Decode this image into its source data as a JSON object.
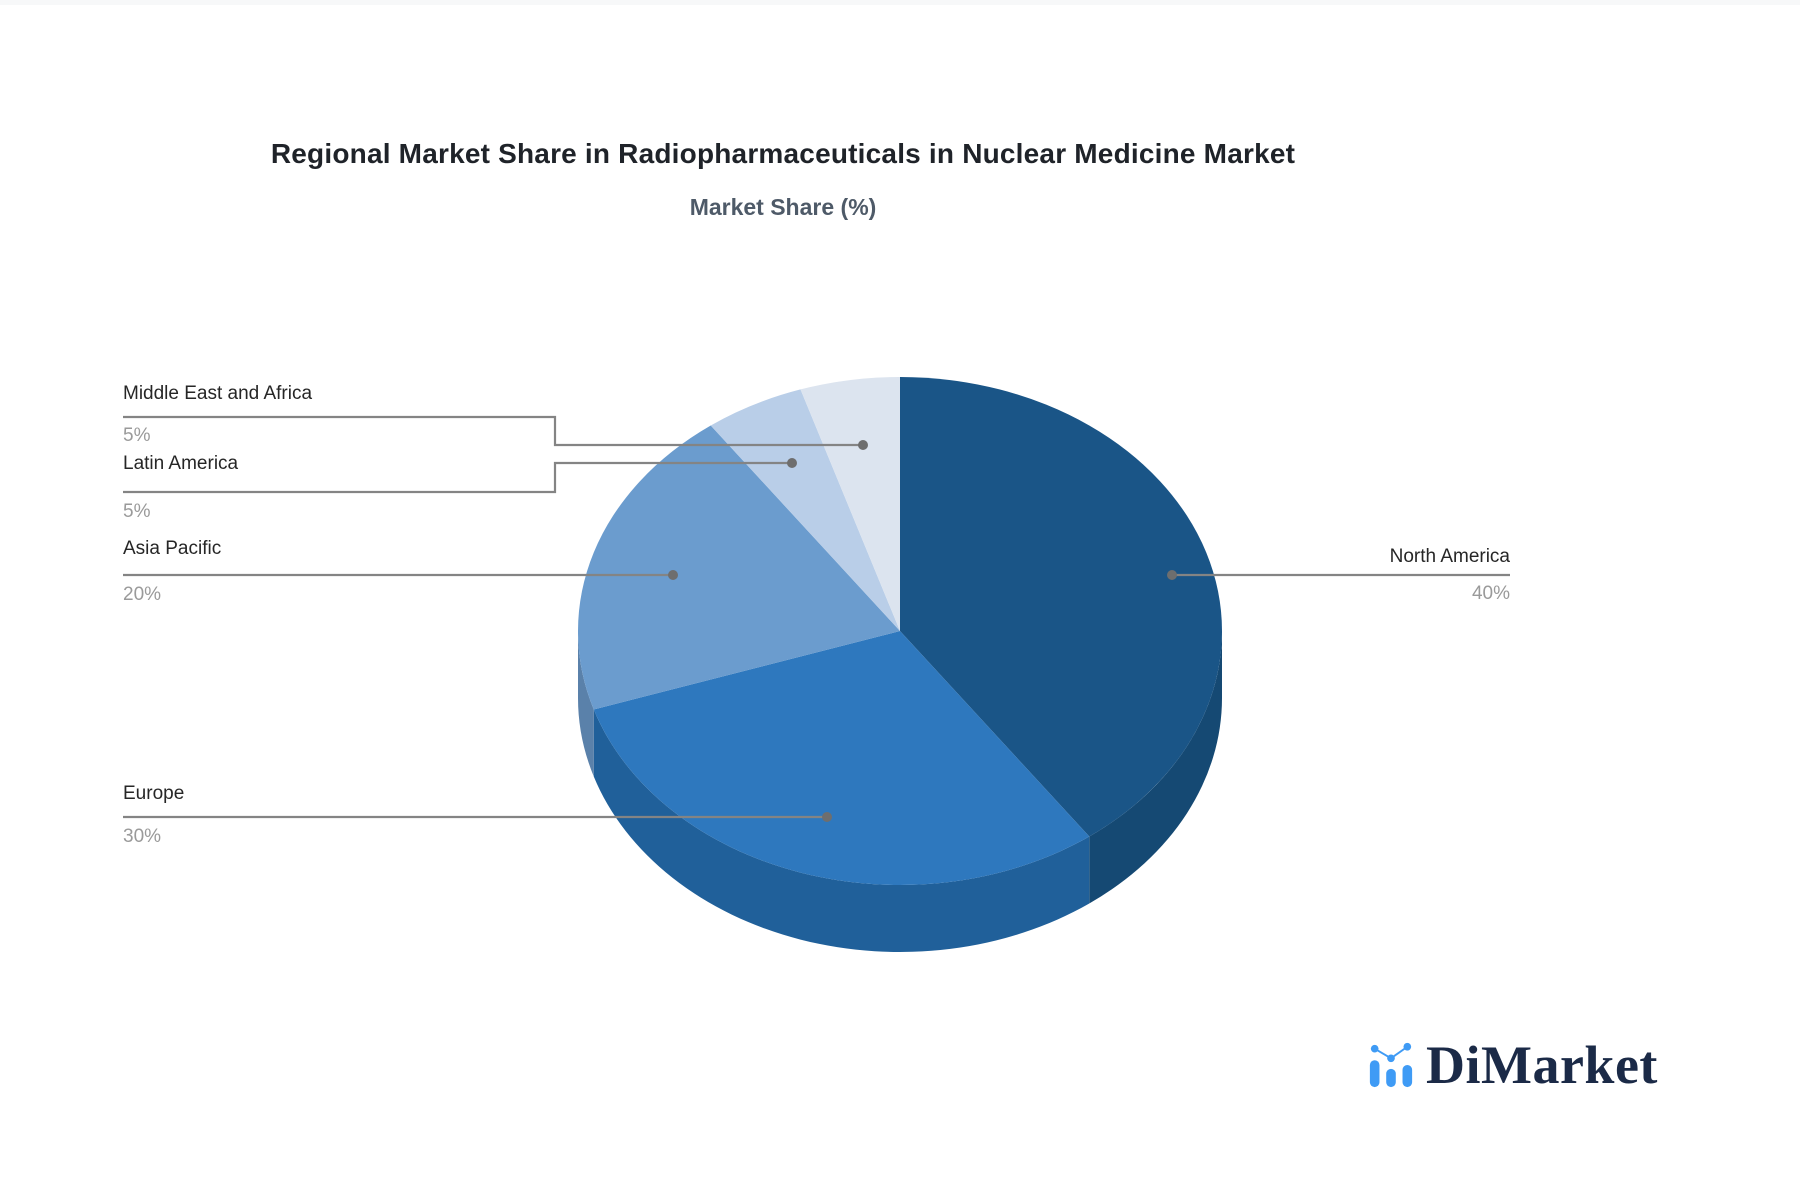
{
  "chart_data": {
    "type": "pie",
    "title": "Regional Market Share in Radiopharmaceuticals in Nuclear Medicine Market",
    "subtitle": "Market Share (%)",
    "unit": "%",
    "effect": "3d",
    "legend": "none",
    "label_style": "leader-lines",
    "start_angle_deg": 0,
    "clockwise": true,
    "slices": [
      {
        "label": "North America",
        "value": 40,
        "display": "40%",
        "color": "#1A5587",
        "side_color": "#154973"
      },
      {
        "label": "Europe",
        "value": 30,
        "display": "30%",
        "color": "#2E78BE",
        "side_color": "#20609A"
      },
      {
        "label": "Asia Pacific",
        "value": 20,
        "display": "20%",
        "color": "#6B9CCE",
        "side_color": "#5A81AA"
      },
      {
        "label": "Latin America",
        "value": 5,
        "display": "5%",
        "color": "#B9CEE8",
        "side_color": "#9FB8D4"
      },
      {
        "label": "Middle East and Africa",
        "value": 5,
        "display": "5%",
        "color": "#DCE4EF",
        "side_color": "#C2CCDB"
      }
    ]
  },
  "branding": {
    "logo_text": "DiMarket",
    "logo_text_color": "#1B2A47",
    "logo_icon_color": "#3F9BF5"
  },
  "colors": {
    "leader_line": "#848484",
    "anchor_dot": "#6E6E6E",
    "label_text": "#262626",
    "pct_text": "#9A9A9A"
  }
}
